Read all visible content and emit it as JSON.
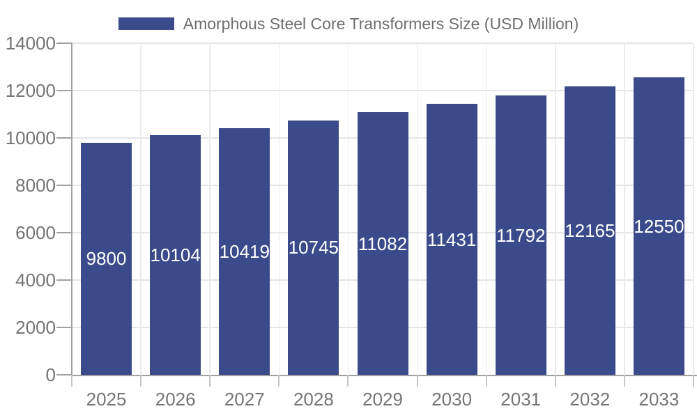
{
  "legend": {
    "label": "Amorphous Steel Core Transformers Size (USD Million)",
    "swatch_color": "#3A4A8B"
  },
  "chart_data": {
    "type": "bar",
    "title": "Amorphous Steel Core Transformers Size (USD Million)",
    "categories": [
      "2025",
      "2026",
      "2027",
      "2028",
      "2029",
      "2030",
      "2031",
      "2032",
      "2033"
    ],
    "values": [
      9800,
      10104,
      10419,
      10745,
      11082,
      11431,
      11792,
      12165,
      12550
    ],
    "xlabel": "",
    "ylabel": "",
    "ylim": [
      0,
      14000
    ],
    "yticks": [
      0,
      2000,
      4000,
      6000,
      8000,
      10000,
      12000,
      14000
    ],
    "grid": true,
    "legend_position": "top-center",
    "value_labels_position": "inside-center",
    "colors": {
      "bar": "#3A4A8B",
      "grid_h": "#E4E4E9",
      "grid_v": "#EAEAEF",
      "axis": "#A0A0A0",
      "x_tick": "#C4C4CA",
      "tick_label": "#757575",
      "value_label": "#FFFFFF",
      "title": "#6E6E6E",
      "background": "#FFFFFF"
    }
  }
}
